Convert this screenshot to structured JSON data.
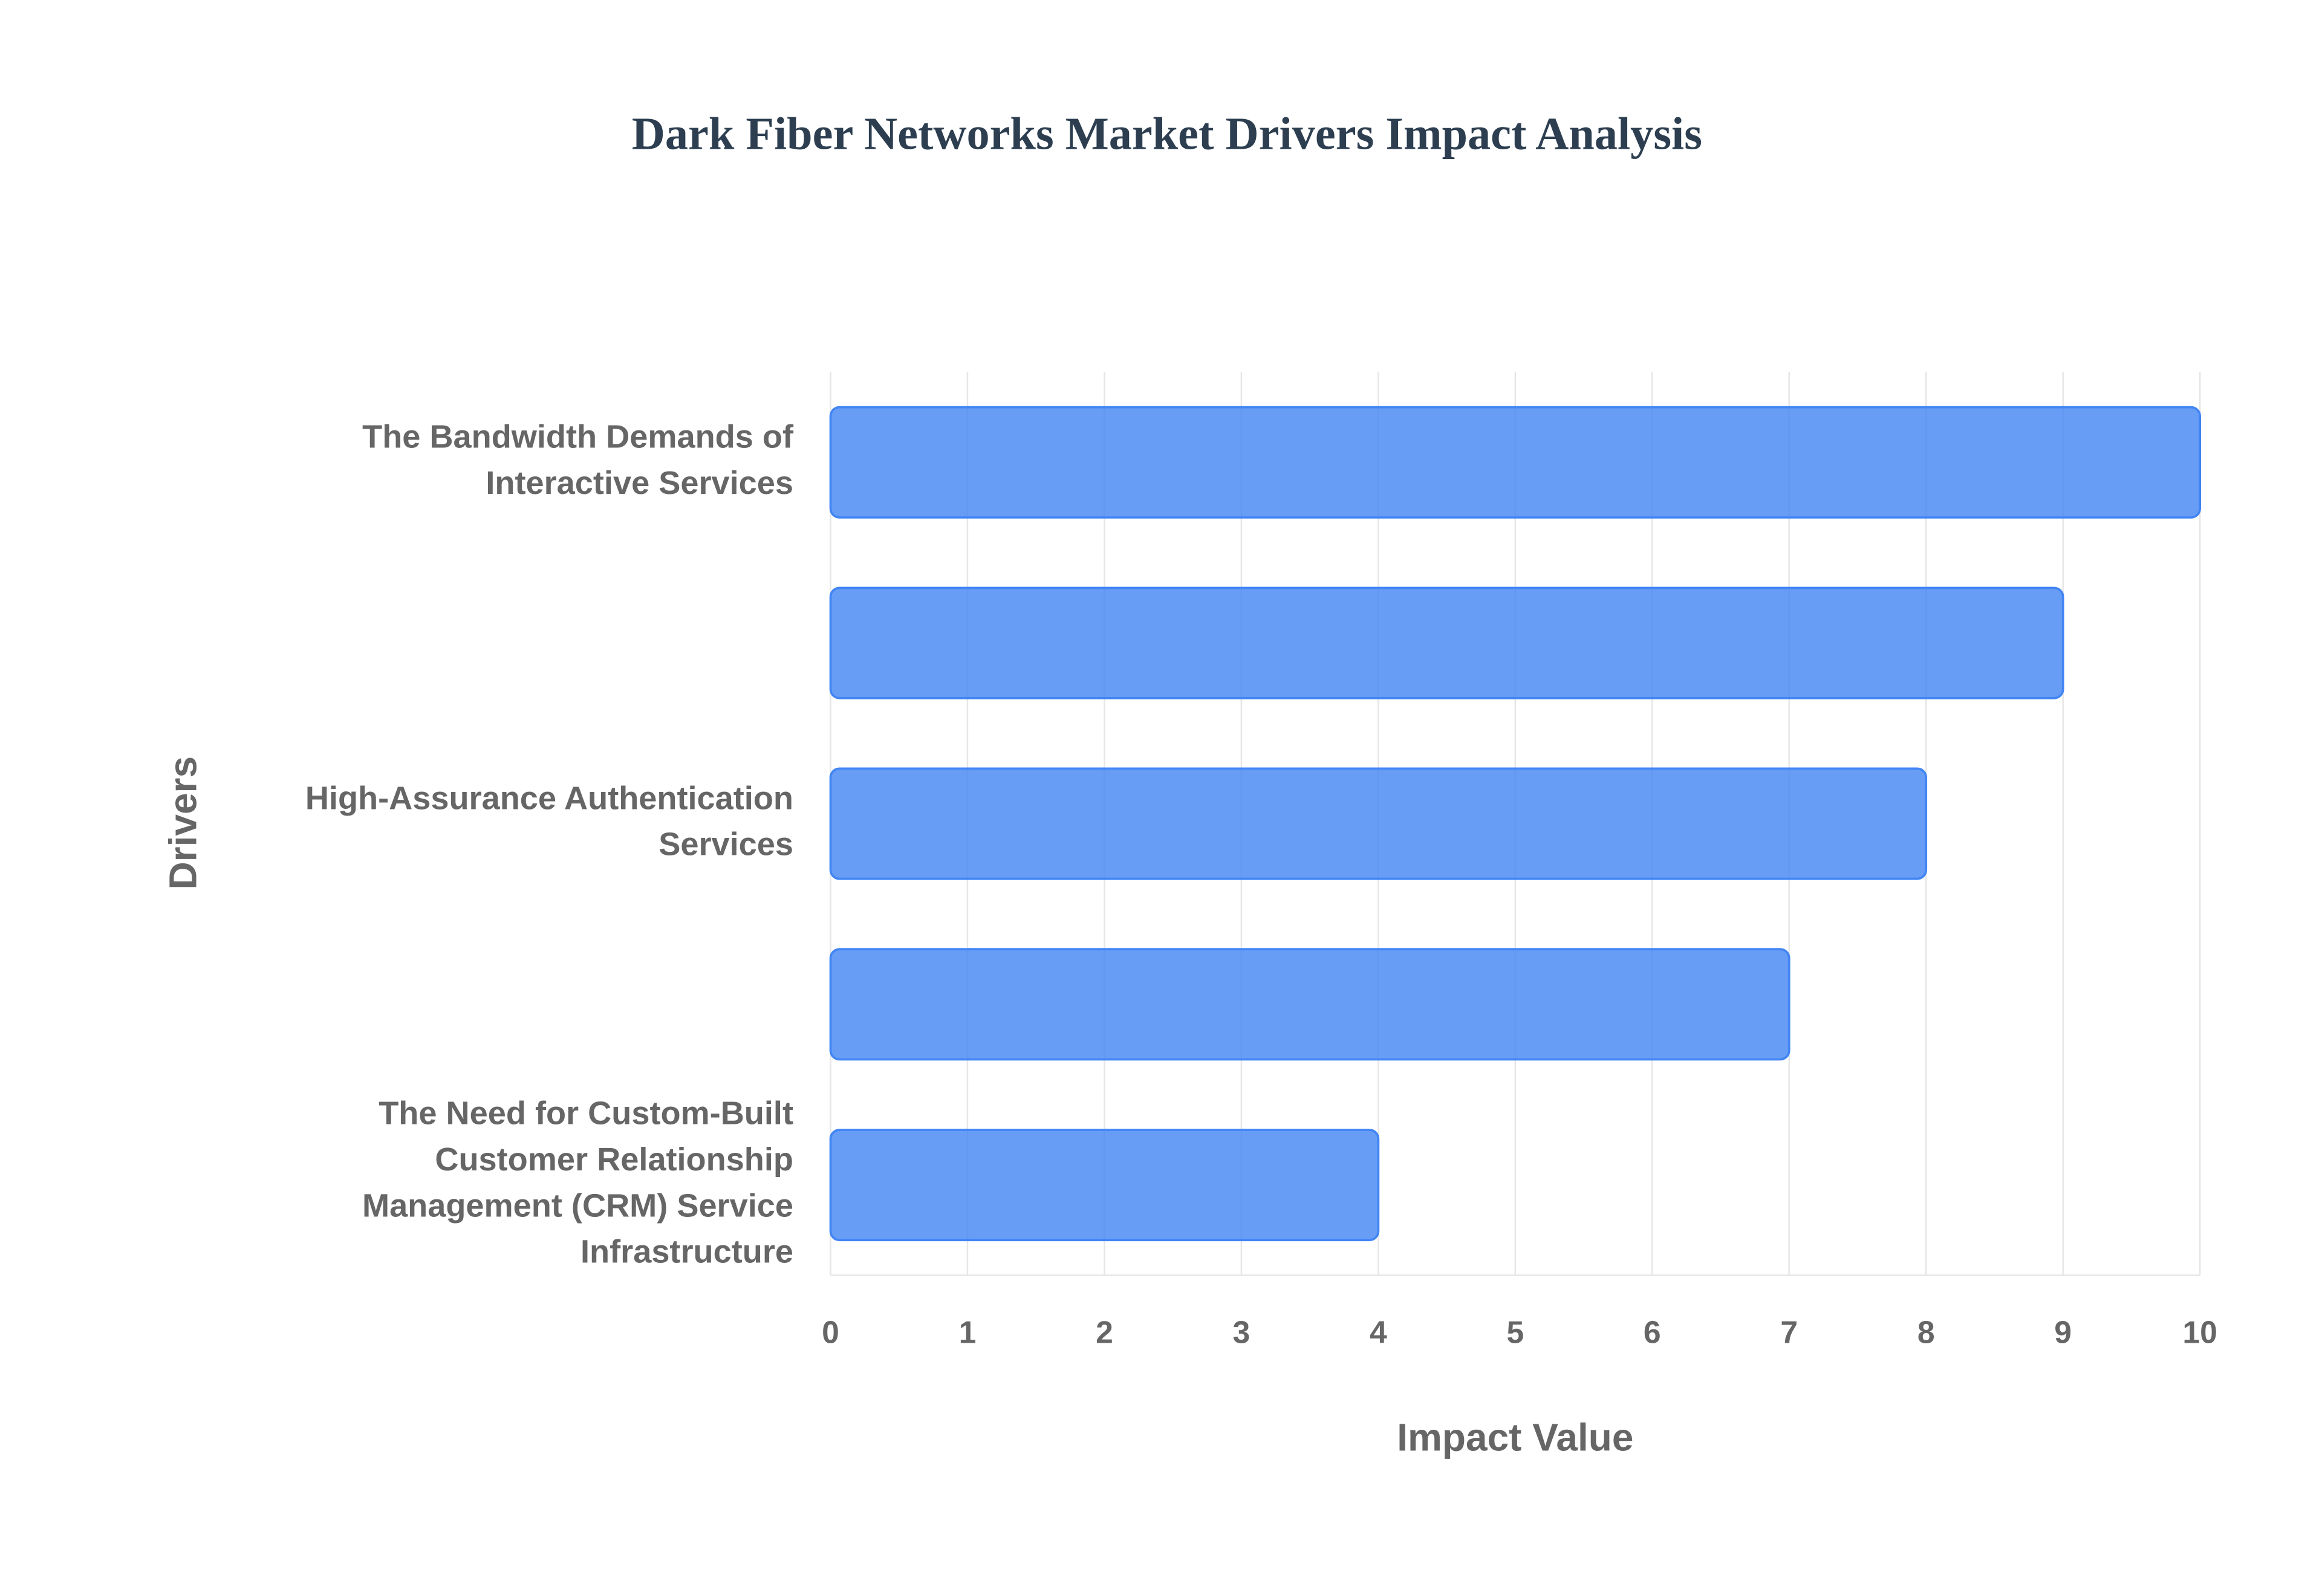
{
  "chart_data": {
    "type": "bar",
    "orientation": "horizontal",
    "title": "Dark Fiber Networks Market Drivers Impact Analysis",
    "x_label": "Impact Value",
    "y_label": "Drivers",
    "categories": [
      "The Bandwidth Demands of Interactive Services",
      null,
      "High-Assurance Authentication Services",
      null,
      "The Need for Custom-Built Customer Relationship Management (CRM) Service Infrastructure"
    ],
    "values": [
      10,
      9,
      8,
      7,
      4
    ],
    "color": "#4285f4",
    "xlim": [
      0,
      10
    ],
    "xticks": [
      0,
      1,
      2,
      3,
      4,
      5,
      6,
      7,
      8,
      9,
      10
    ],
    "grid": true
  }
}
